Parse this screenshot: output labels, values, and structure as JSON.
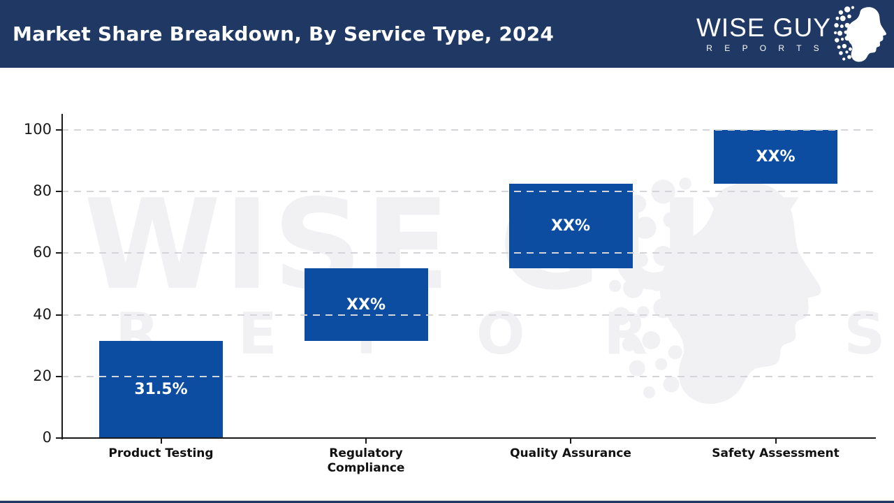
{
  "header": {
    "title": "Market Share Breakdown, By Service Type, 2024",
    "logo": {
      "wordmark": "WISE GUY",
      "subtitle": "R E P O R T S"
    }
  },
  "watermark": {
    "wordmark": "WISE GUY",
    "subtitle": "R E P O R T S"
  },
  "colors": {
    "header_bg": "#1f3864",
    "bar": "#0c4da2",
    "bar_label": "#ffffff",
    "grid": "#d2d5da",
    "axis": "#1a1a1a",
    "tick_text": "#1a1a1a",
    "watermark": "#f1f1f4",
    "logo_white": "#ffffff"
  },
  "chart_data": {
    "type": "bar",
    "subtype": "floating-segment-waterfall",
    "title": "Market Share Breakdown, By Service Type, 2024",
    "categories": [
      "Product Testing",
      "Regulatory\nCompliance",
      "Quality Assurance",
      "Safety Assessment"
    ],
    "segments": [
      {
        "category": "Product Testing",
        "start": 0,
        "end": 31.5,
        "label": "31.5%"
      },
      {
        "category": "Regulatory Compliance",
        "start": 31.5,
        "end": 55,
        "label": "XX%"
      },
      {
        "category": "Quality Assurance",
        "start": 55,
        "end": 82.5,
        "label": "XX%"
      },
      {
        "category": "Safety Assessment",
        "start": 82.5,
        "end": 100,
        "label": "XX%"
      }
    ],
    "ylim": [
      0,
      100
    ],
    "yticks": [
      0,
      20,
      40,
      60,
      80,
      100
    ],
    "xlabel": "",
    "ylabel": "",
    "grid": "horizontal-dashed",
    "legend": false
  }
}
